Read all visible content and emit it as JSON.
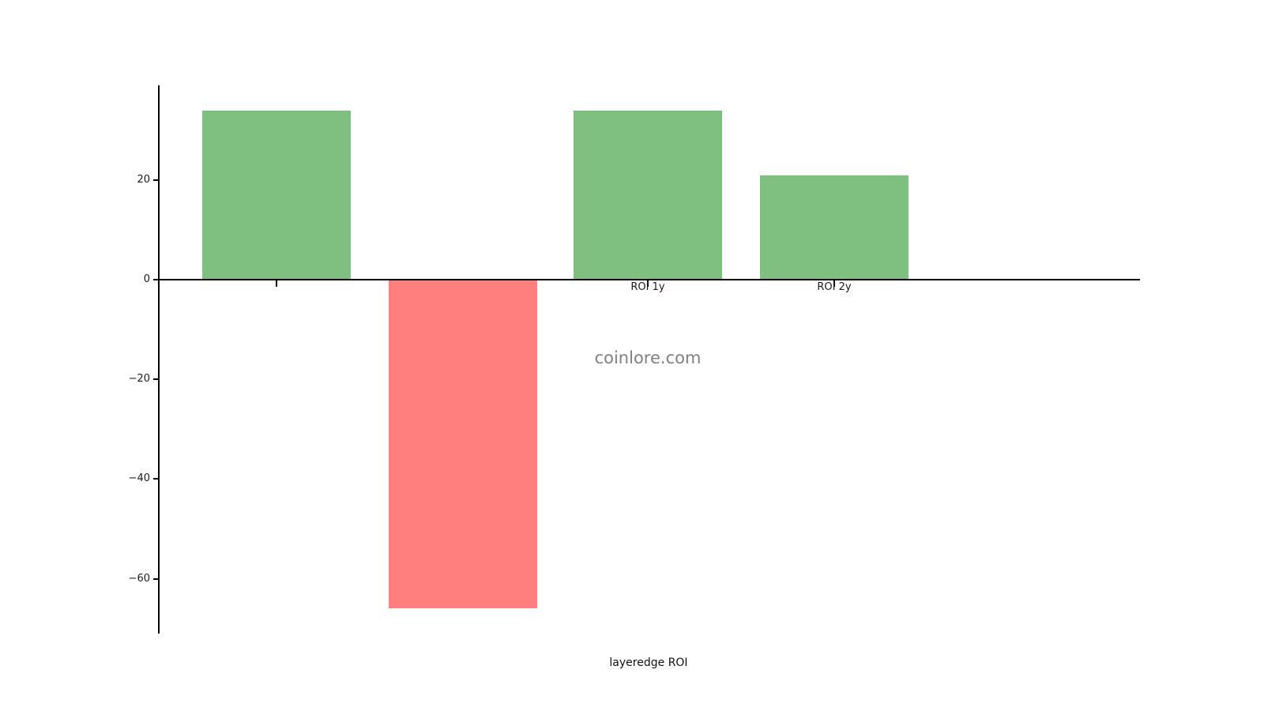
{
  "chart_data": {
    "type": "bar",
    "title": "",
    "xlabel": "layeredge ROI",
    "ylabel": "",
    "categories": [
      "",
      "",
      "ROI 1y",
      "ROI 2y"
    ],
    "values": [
      34,
      -66,
      34,
      21
    ],
    "bar_colors": [
      "#7fbf7f",
      "#ff7f7f",
      "#7fbf7f",
      "#7fbf7f"
    ],
    "positive_color": "#7fbf7f",
    "negative_color": "#ff7f7f",
    "yticks": [
      20,
      0,
      -20,
      -40,
      -60
    ],
    "ytick_labels": [
      "20",
      "0",
      "−20",
      "−40",
      "−60"
    ],
    "ylim": [
      -71,
      39
    ],
    "grid": false,
    "legend_position": "none",
    "watermark": "coinlore.com",
    "colors": {
      "axis": "#000000",
      "tick_label": "#1a1a1a",
      "watermark": "#808080",
      "background": "#ffffff"
    }
  }
}
